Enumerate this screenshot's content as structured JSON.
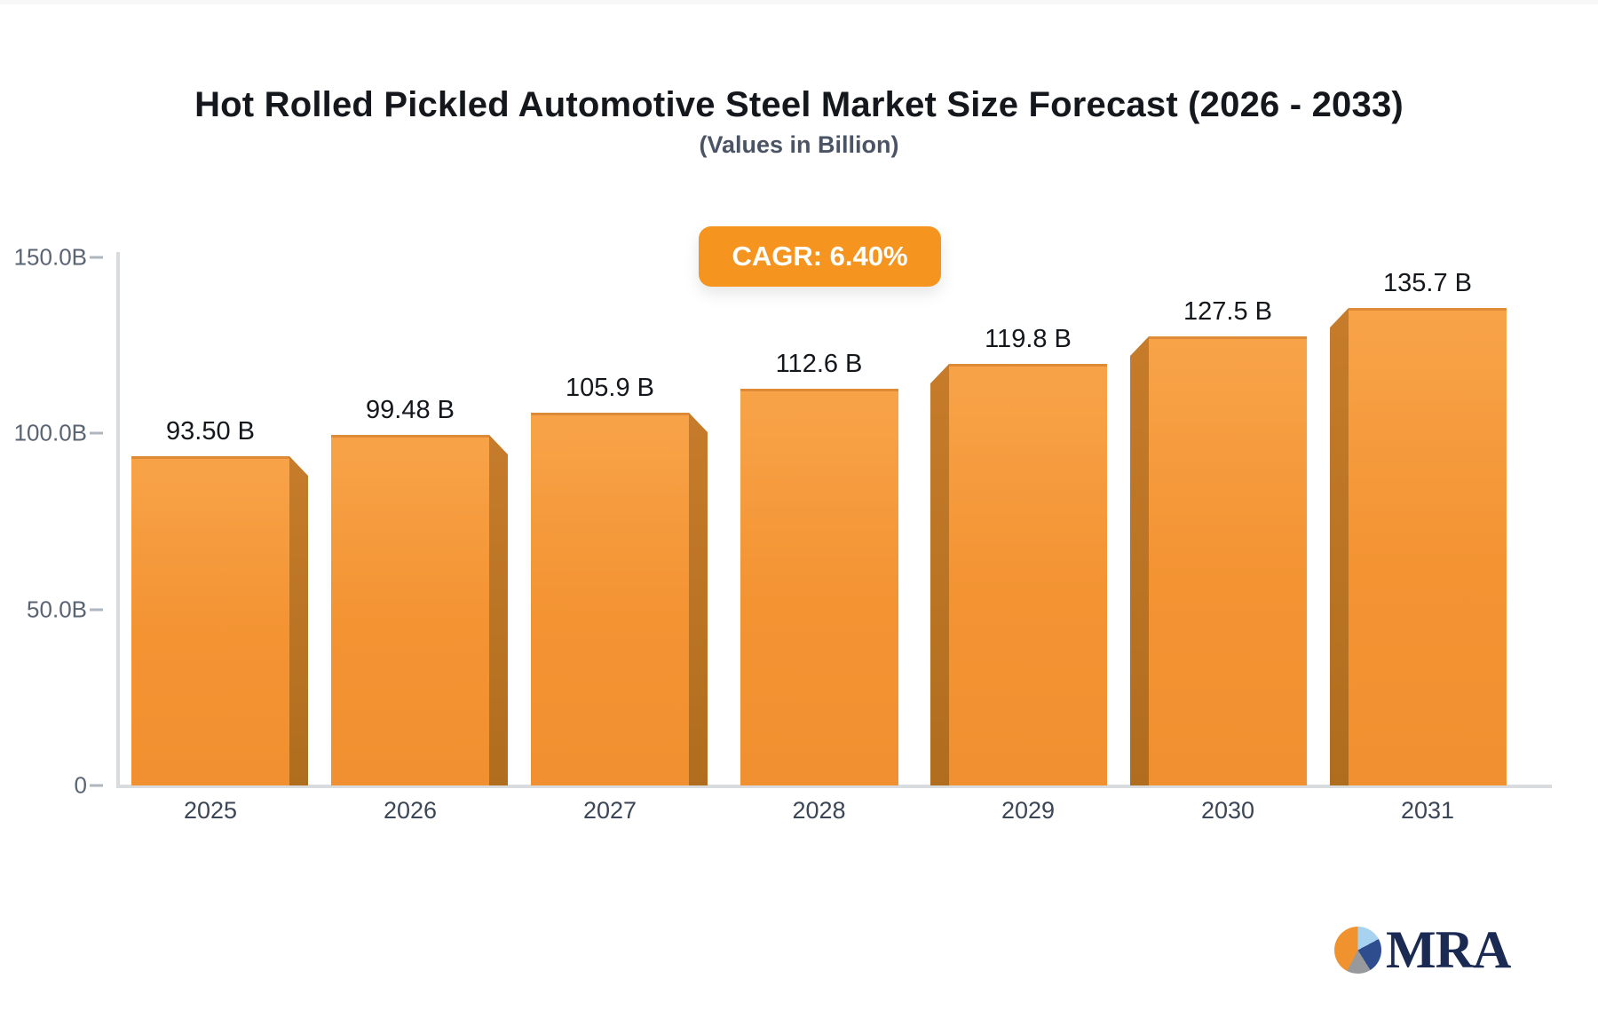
{
  "chart_data": {
    "type": "bar",
    "title": "Hot Rolled Pickled Automotive Steel Market Size Forecast (2026 - 2033)",
    "subtitle": "(Values in Billion)",
    "cagr_label": "CAGR: 6.40%",
    "categories": [
      "2025",
      "2026",
      "2027",
      "2028",
      "2029",
      "2030",
      "2031"
    ],
    "values": [
      93.5,
      99.48,
      105.9,
      112.6,
      119.8,
      127.5,
      135.7
    ],
    "value_labels": [
      "93.50 B",
      "99.48 B",
      "105.9 B",
      "112.6 B",
      "119.8 B",
      "127.5 B",
      "135.7 B"
    ],
    "xlabel": "",
    "ylabel": "",
    "ylim": [
      0,
      150
    ],
    "yticks": [
      {
        "value": 150,
        "label": "150.0B"
      },
      {
        "value": 100,
        "label": "100.0B"
      },
      {
        "value": 50,
        "label": "50.0B"
      },
      {
        "value": 0,
        "label": "0"
      }
    ],
    "grid": false,
    "legend": "none",
    "bar_color": "#f39332",
    "bar_side_color": "#bd7324",
    "badge_color": "#f5941e"
  },
  "logo": {
    "text": "MRA",
    "pie_colors": [
      "#f0922d",
      "#a7d3f1",
      "#2e4d8f",
      "#97999d"
    ]
  }
}
